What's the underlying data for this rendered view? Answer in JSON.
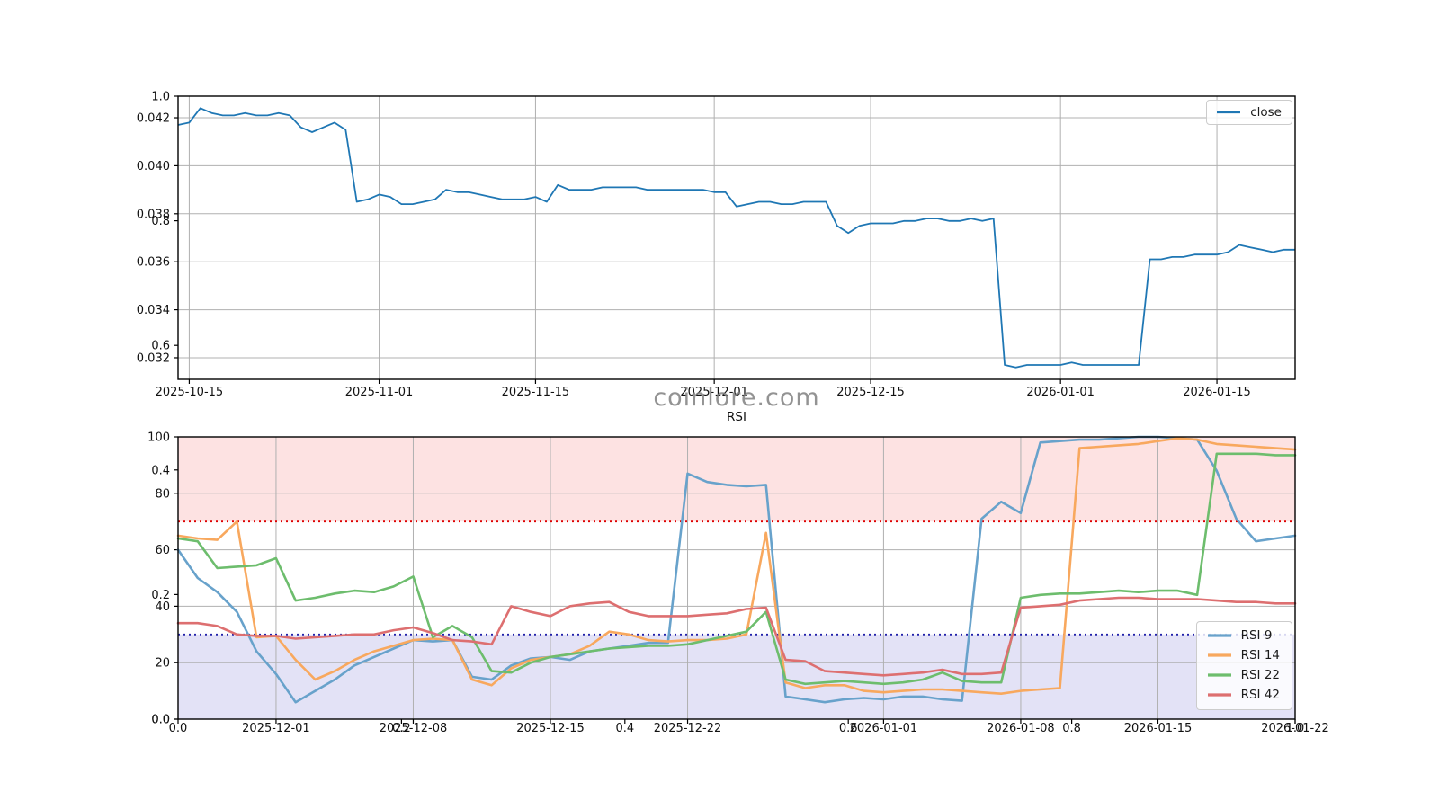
{
  "watermark": "coinlore.com",
  "colors": {
    "close": "#1f77b4",
    "rsi9": "#68a2cb",
    "rsi14": "#f8a85e",
    "rsi22": "#6dbd6d",
    "rsi42": "#dd6f70",
    "overbought_band": "#fde2e2",
    "oversold_band": "#e3e2f6",
    "overbought_line": "#dd0000",
    "oversold_line": "#2222aa",
    "grid": "#b0b0b0",
    "spine": "#000000",
    "tick_text": "#111111"
  },
  "phantom_axis": {
    "ytick_labels": [
      "1.0",
      "0.8",
      "0.6",
      "0.4",
      "0.2",
      "0.0"
    ],
    "xtick_labels": [
      "0.0",
      "0.2",
      "0.4",
      "0.6",
      "0.8",
      "1.0"
    ]
  },
  "chart_data": [
    {
      "type": "line",
      "title": "",
      "xlabel": "",
      "ylabel": "",
      "grid": true,
      "legend_position": "upper right",
      "start_date": "2025-10-14",
      "end_date": "2026-01-22",
      "ylim": [
        0.0311,
        0.0429
      ],
      "yticks": [
        {
          "label": "0.042",
          "value": 0.042
        },
        {
          "label": "0.040",
          "value": 0.04
        },
        {
          "label": "0.038",
          "value": 0.038
        },
        {
          "label": "0.036",
          "value": 0.036
        },
        {
          "label": "0.034",
          "value": 0.034
        },
        {
          "label": "0.032",
          "value": 0.032
        }
      ],
      "xticks": [
        {
          "label": "2025-10-15",
          "day": 1
        },
        {
          "label": "2025-11-01",
          "day": 18
        },
        {
          "label": "2025-11-15",
          "day": 32
        },
        {
          "label": "2025-12-01",
          "day": 48
        },
        {
          "label": "2025-12-15",
          "day": 62
        },
        {
          "label": "2026-01-01",
          "day": 79
        },
        {
          "label": "2026-01-15",
          "day": 93
        }
      ],
      "series": [
        {
          "name": "close",
          "values": [
            0.0417,
            0.0418,
            0.0424,
            0.0422,
            0.0421,
            0.0421,
            0.0422,
            0.0421,
            0.0421,
            0.0422,
            0.0421,
            0.0416,
            0.0414,
            0.0416,
            0.0418,
            0.0415,
            0.0385,
            0.0386,
            0.0388,
            0.0387,
            0.0384,
            0.0384,
            0.0385,
            0.0386,
            0.039,
            0.0389,
            0.0389,
            0.0388,
            0.0387,
            0.0386,
            0.0386,
            0.0386,
            0.0387,
            0.0385,
            0.0392,
            0.039,
            0.039,
            0.039,
            0.0391,
            0.0391,
            0.0391,
            0.0391,
            0.039,
            0.039,
            0.039,
            0.039,
            0.039,
            0.039,
            0.0389,
            0.0389,
            0.0383,
            0.0384,
            0.0385,
            0.0385,
            0.0384,
            0.0384,
            0.0385,
            0.0385,
            0.0385,
            0.0375,
            0.0372,
            0.0375,
            0.0376,
            0.0376,
            0.0376,
            0.0377,
            0.0377,
            0.0378,
            0.0378,
            0.0377,
            0.0377,
            0.0378,
            0.0377,
            0.0378,
            0.0317,
            0.0316,
            0.0317,
            0.0317,
            0.0317,
            0.0317,
            0.0318,
            0.0317,
            0.0317,
            0.0317,
            0.0317,
            0.0317,
            0.0317,
            0.0361,
            0.0361,
            0.0362,
            0.0362,
            0.0363,
            0.0363,
            0.0363,
            0.0364,
            0.0367,
            0.0366,
            0.0365,
            0.0364,
            0.0365,
            0.0365
          ]
        }
      ]
    },
    {
      "type": "line",
      "title": "RSI",
      "xlabel": "",
      "ylabel": "",
      "grid": true,
      "legend_position": "lower right",
      "start_date": "2025-11-26",
      "end_date": "2026-01-22",
      "ylim": [
        0,
        100
      ],
      "overbought_band": [
        70,
        100
      ],
      "oversold_band": [
        0,
        30
      ],
      "overbought_line": 70,
      "oversold_line": 30,
      "yticks": [
        {
          "label": "100",
          "value": 100
        },
        {
          "label": "80",
          "value": 80
        },
        {
          "label": "60",
          "value": 60
        },
        {
          "label": "40",
          "value": 40
        },
        {
          "label": "20",
          "value": 20
        },
        {
          "label": "0.0",
          "value": 0
        }
      ],
      "xticks": [
        {
          "label": "2025-12-01",
          "day": 5
        },
        {
          "label": "2025-12-08",
          "day": 12
        },
        {
          "label": "2025-12-15",
          "day": 19
        },
        {
          "label": "2025-12-22",
          "day": 26
        },
        {
          "label": "2026-01-01",
          "day": 36
        },
        {
          "label": "2026-01-08",
          "day": 43
        },
        {
          "label": "2026-01-15",
          "day": 50
        },
        {
          "label": "2026-01-22",
          "day": 57
        }
      ],
      "series": [
        {
          "name": "RSI 9",
          "values": [
            60,
            50,
            45,
            38,
            24,
            16,
            6,
            10,
            14,
            19,
            22,
            25,
            28,
            27.5,
            28,
            15,
            14,
            19,
            21.5,
            22,
            21,
            24,
            25,
            26,
            27,
            27,
            87,
            84,
            83,
            82.5,
            83,
            8,
            7,
            6,
            7,
            7.5,
            7,
            8,
            8,
            7,
            6.5,
            71,
            77,
            73,
            98,
            98.5,
            99,
            99,
            99.5,
            100,
            100,
            99.5,
            99,
            88,
            71,
            63,
            64,
            65
          ]
        },
        {
          "name": "RSI 14",
          "values": [
            65,
            64,
            63.5,
            70,
            29,
            29.5,
            21,
            14,
            17,
            21,
            24,
            26,
            28,
            28.5,
            28,
            14,
            12,
            18,
            21,
            22,
            23,
            26,
            31,
            30,
            28,
            27.5,
            28,
            28,
            28.5,
            30,
            66,
            13,
            11,
            12,
            12,
            10,
            9.5,
            10,
            10.5,
            10.5,
            10,
            9.5,
            9,
            10,
            10.5,
            11,
            96,
            96.5,
            97,
            97.5,
            98.5,
            99.5,
            99,
            97.5,
            97,
            96.5,
            96,
            95.5
          ]
        },
        {
          "name": "RSI 22",
          "values": [
            64,
            63,
            53.5,
            54,
            54.5,
            57,
            42,
            43,
            44.5,
            45.5,
            45,
            47,
            50.5,
            29,
            33,
            29,
            17,
            16.5,
            20,
            22,
            23,
            24,
            25,
            25.5,
            26,
            26,
            26.5,
            28,
            29.5,
            31,
            38,
            14,
            12.5,
            13,
            13.5,
            13,
            12.5,
            13,
            14,
            16.5,
            13.5,
            13,
            13,
            43,
            44,
            44.5,
            44.5,
            45,
            45.5,
            45,
            45.5,
            45.5,
            44,
            94,
            94,
            94,
            93.5,
            93.5
          ]
        },
        {
          "name": "RSI 42",
          "values": [
            34,
            34,
            33,
            30,
            29.5,
            29.5,
            28.5,
            29,
            29.5,
            30,
            30,
            31.5,
            32.5,
            30.5,
            28,
            27.5,
            26.5,
            40,
            38,
            36.5,
            40,
            41,
            41.5,
            38,
            36.5,
            36.5,
            36.5,
            37,
            37.5,
            39,
            39.5,
            21,
            20.5,
            17,
            16.5,
            16,
            15.5,
            16,
            16.5,
            17.5,
            16,
            16,
            16.5,
            39.5,
            40,
            40.5,
            42,
            42.5,
            43,
            43,
            42.5,
            42.5,
            42.5,
            42,
            41.5,
            41.5,
            41,
            41
          ]
        }
      ]
    }
  ]
}
